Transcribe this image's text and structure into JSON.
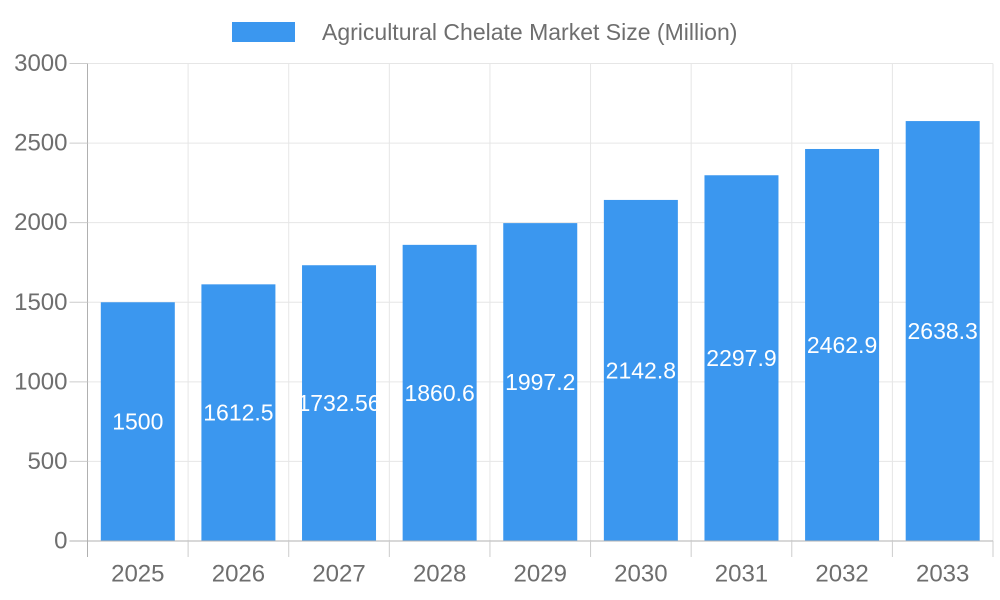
{
  "legend": {
    "label": "Agricultural Chelate Market Size (Million)"
  },
  "chart_data": {
    "type": "bar",
    "title": "Agricultural Chelate Market Size (Million)",
    "categories": [
      "2025",
      "2026",
      "2027",
      "2028",
      "2029",
      "2030",
      "2031",
      "2032",
      "2033"
    ],
    "values": [
      1500,
      1612.5,
      1732.56,
      1860.6,
      1997.2,
      2142.8,
      2297.9,
      2462.9,
      2638.3
    ],
    "bar_labels": [
      "1500",
      "1612.5",
      "1732.56",
      "1860.6",
      "1997.2",
      "2142.8",
      "2297.9",
      "2462.9",
      "2638.3"
    ],
    "xlabel": "",
    "ylabel": "",
    "ylim": [
      0,
      3000
    ],
    "y_ticks": [
      0,
      500,
      1000,
      1500,
      2000,
      2500,
      3000
    ],
    "grid": true,
    "legend_position": "top",
    "colors": {
      "bar": "#3b97ef",
      "bar_label_text": "#ffffff",
      "axis_text": "#6e6e6e",
      "gridline": "#e6e6e6",
      "axis_line": "#b0b0b0",
      "tick": "#cccccc",
      "background": "#ffffff"
    }
  }
}
